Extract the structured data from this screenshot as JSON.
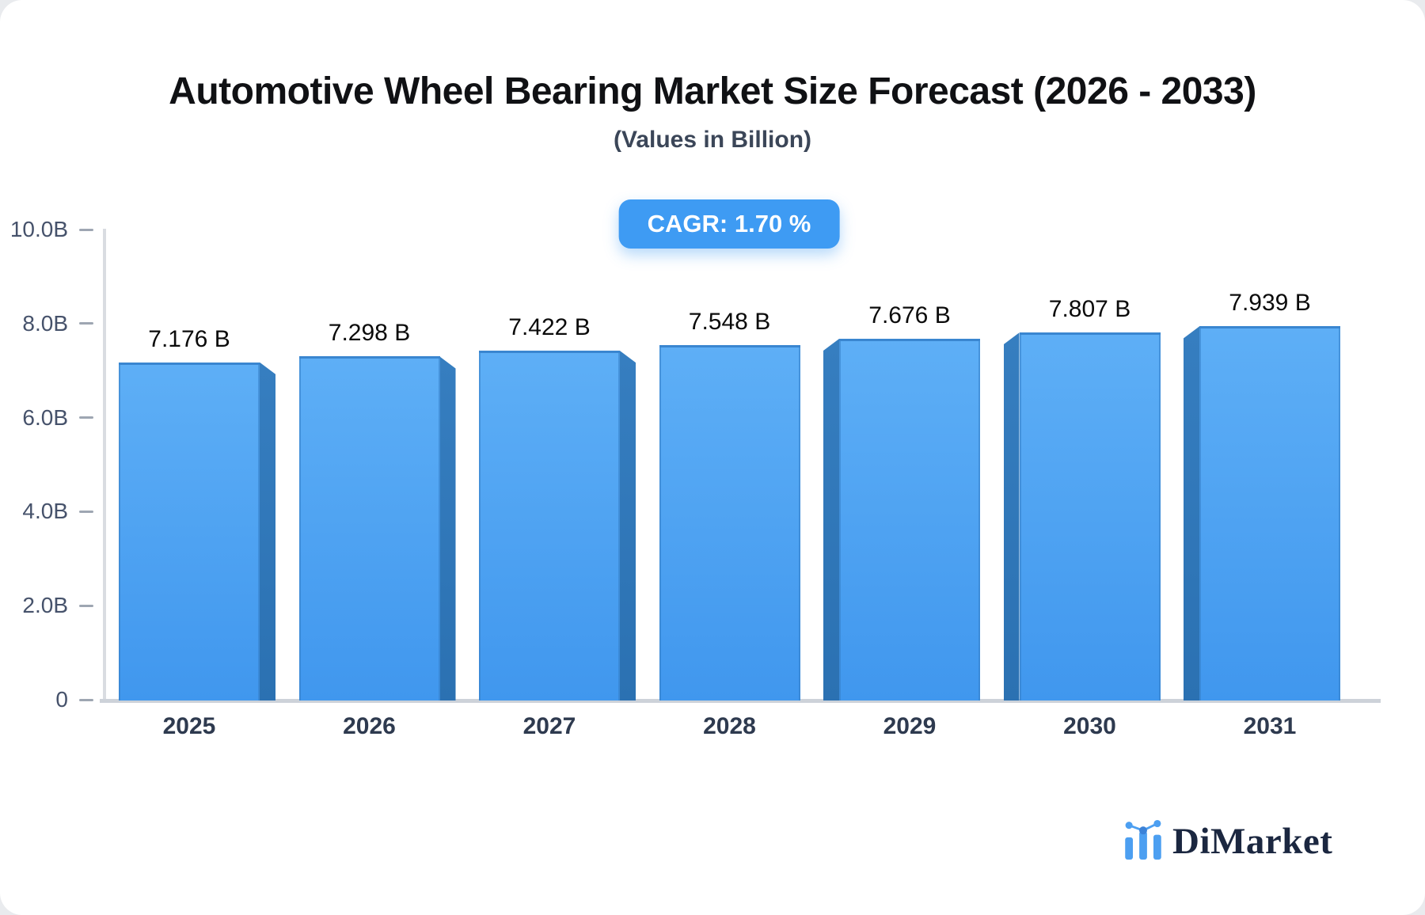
{
  "header": {
    "title": "Automotive Wheel Bearing Market Size Forecast (2026 - 2033)",
    "subtitle": "(Values in Billion)",
    "cagr_badge": "CAGR: 1.70 %"
  },
  "chart_data": {
    "type": "bar",
    "title": "Automotive Wheel Bearing Market Size Forecast (2026 - 2033)",
    "subtitle": "(Values in Billion)",
    "categories": [
      "2025",
      "2026",
      "2027",
      "2028",
      "2029",
      "2030",
      "2031"
    ],
    "values": [
      7.176,
      7.298,
      7.422,
      7.548,
      7.676,
      7.807,
      7.939
    ],
    "value_labels": [
      "7.176 B",
      "7.298 B",
      "7.422 B",
      "7.548 B",
      "7.676 B",
      "7.807 B",
      "7.939 B"
    ],
    "unit": "Billion",
    "ylim": [
      0,
      10
    ],
    "yticks": [
      {
        "value": 10,
        "label": "10.0B"
      },
      {
        "value": 8,
        "label": "8.0B"
      },
      {
        "value": 6,
        "label": "6.0B"
      },
      {
        "value": 4,
        "label": "4.0B"
      },
      {
        "value": 2,
        "label": "2.0B"
      },
      {
        "value": 0,
        "label": "0"
      }
    ],
    "annotation": "CAGR: 1.70 %",
    "grid": "off",
    "legend": "none",
    "bar_style": "3d-perspective, side faces angled toward center bar"
  },
  "branding": {
    "logo_text": "DiMarket",
    "logo_icon": "mini-bar-chart-with-trend-dots-icon"
  },
  "colors": {
    "bar_face_top": "#5eaff6",
    "bar_face_bottom": "#4097ee",
    "bar_side": "#2e76b8",
    "badge_background": "#3e9bf3",
    "badge_text": "#ffffff",
    "axis_line": "#cdd2d9",
    "tick_label": "#46526b",
    "category_label": "#2e3a4f",
    "title_text": "#101114",
    "logo_navy": "#1b2740",
    "logo_blue": "#4c9ff1"
  }
}
